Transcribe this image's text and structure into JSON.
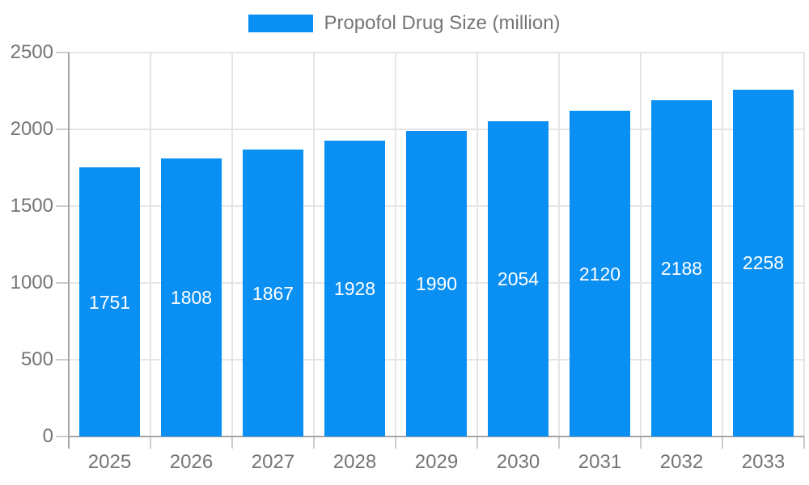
{
  "legend": {
    "label": "Propofol Drug Size (million)"
  },
  "colors": {
    "bar": "#0a8ff2",
    "axis_line": "#a5a5a5",
    "grid_line": "#e5e5e5",
    "tick_mark": "#cccccc",
    "tick_label": "#757575",
    "value_label": "#ffffff"
  },
  "chart_data": {
    "type": "bar",
    "title": "Propofol Drug Size (million)",
    "series_name": "Propofol Drug Size (million)",
    "categories": [
      "2025",
      "2026",
      "2027",
      "2028",
      "2029",
      "2030",
      "2031",
      "2032",
      "2033"
    ],
    "values": [
      1751,
      1808,
      1867,
      1928,
      1990,
      2054,
      2120,
      2188,
      2258
    ],
    "xlabel": "",
    "ylabel": "",
    "ylim": [
      0,
      2500
    ],
    "yticks": [
      0,
      500,
      1000,
      1500,
      2000,
      2500
    ],
    "grid": true,
    "legend_position": "top",
    "value_labels": "inside-center"
  }
}
